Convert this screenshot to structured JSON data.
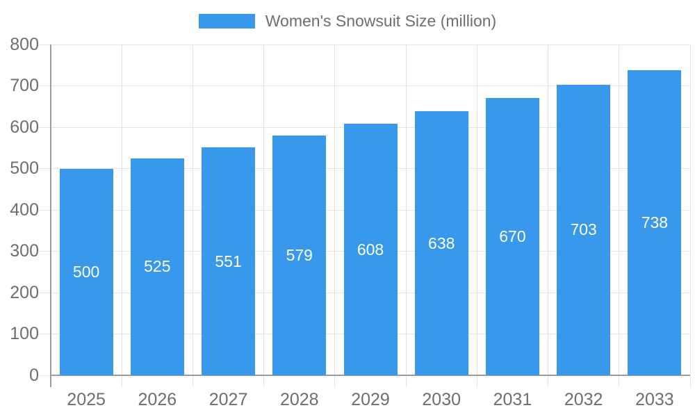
{
  "chart_data": {
    "type": "bar",
    "categories": [
      "2025",
      "2026",
      "2027",
      "2028",
      "2029",
      "2030",
      "2031",
      "2032",
      "2033"
    ],
    "values": [
      500,
      525,
      551,
      579,
      608,
      638,
      670,
      703,
      738
    ],
    "legend": {
      "label": "Women's Snowsuit Size (million)",
      "position": "top"
    },
    "xlabel": "",
    "ylabel": "",
    "ylim": [
      0,
      800
    ],
    "yticks": [
      0,
      100,
      200,
      300,
      400,
      500,
      600,
      700,
      800
    ],
    "grid": true,
    "value_label_position": "inside-center",
    "bar_color": "#3898ec",
    "value_label_color": "#ffffff",
    "grid_color": "#e3e3e3",
    "axis_color": "#9b9b9b",
    "tick_label_color": "#6e6e6e",
    "background_color": "#ffffff"
  }
}
